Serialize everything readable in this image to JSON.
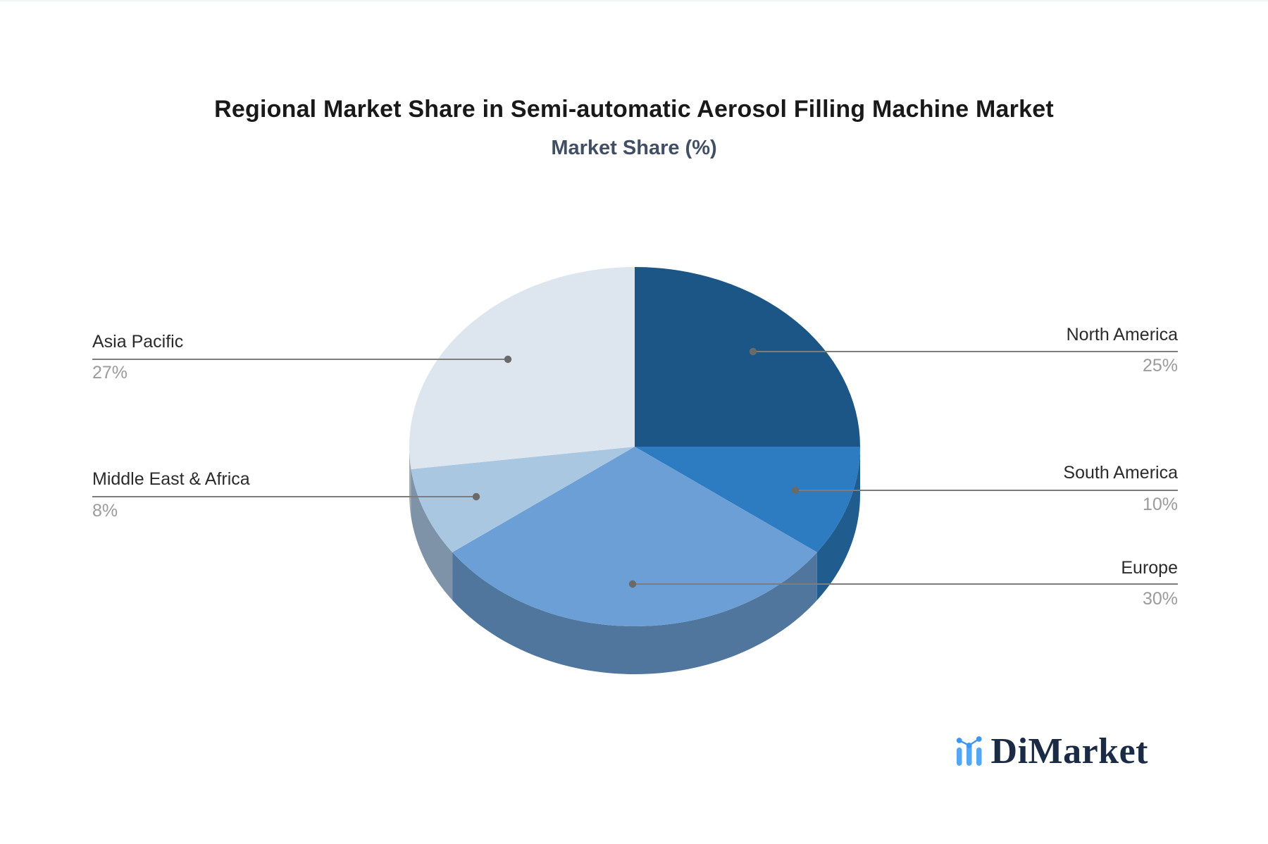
{
  "chart_data": {
    "type": "pie",
    "style": "3d-pie",
    "title": "Regional Market Share in Semi-automatic Aerosol Filling Machine Market",
    "subtitle": "Market Share (%)",
    "categories": [
      "North America",
      "South America",
      "Europe",
      "Middle East & Africa",
      "Asia Pacific"
    ],
    "values": [
      25,
      10,
      30,
      8,
      27
    ],
    "pct_labels": [
      "25%",
      "10%",
      "30%",
      "8%",
      "27%"
    ],
    "colors": [
      "#1b5687",
      "#2d7cc1",
      "#6c9fd5",
      "#aac7e2",
      "#dde6ef"
    ],
    "start_position": "12 o'clock",
    "direction": "clockwise",
    "callout_sides": [
      "right",
      "right",
      "right",
      "left",
      "left"
    ],
    "leader_line_color": "#7d7d7d",
    "leader_dot_color": "#6a6a6a",
    "label_color": "#2b2b2b",
    "value_color": "#9b9b9b",
    "depth_shade_factor": 0.74,
    "legend": "none"
  },
  "logo": {
    "text": "DiMarket",
    "icon": "bar-line-chart-icon",
    "text_color": "#1b2b45",
    "bar_color": "#55a7f3",
    "line_color": "#3d97f2"
  }
}
